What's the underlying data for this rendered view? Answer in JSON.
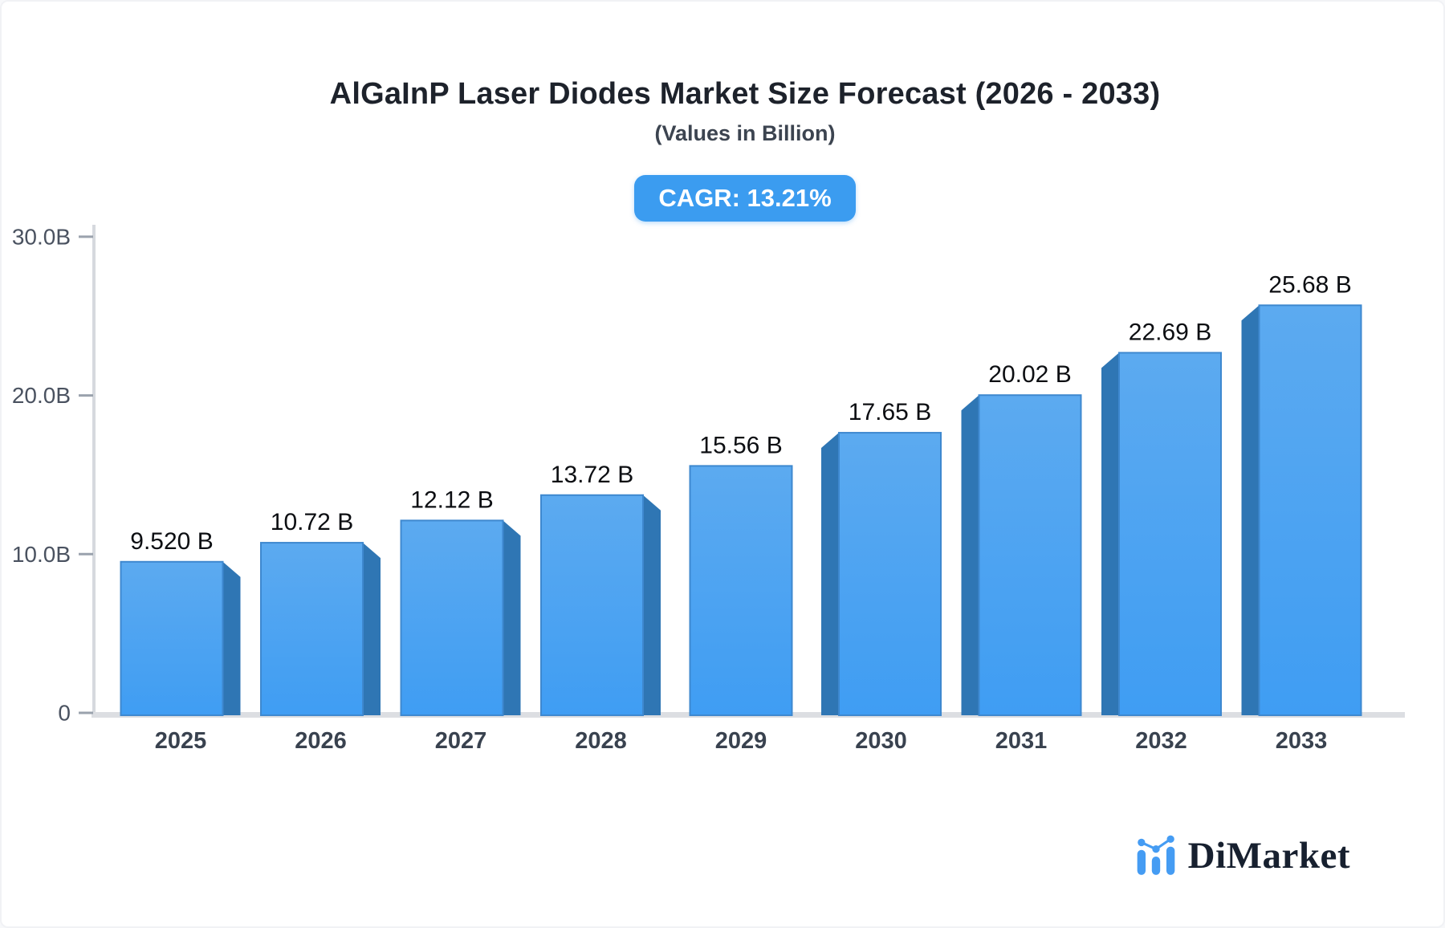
{
  "header": {
    "title": "AlGaInP Laser Diodes Market Size Forecast (2026 - 2033)",
    "subtitle": "(Values in Billion)"
  },
  "badge": {
    "label": "CAGR: 13.21%"
  },
  "chart_data": {
    "type": "bar",
    "title": "AlGaInP Laser Diodes Market Size Forecast (2026 - 2033)",
    "subtitle": "(Values in Billion)",
    "cagr_percent": 13.21,
    "categories": [
      "2025",
      "2026",
      "2027",
      "2028",
      "2029",
      "2030",
      "2031",
      "2032",
      "2033"
    ],
    "values": [
      9.52,
      10.72,
      12.12,
      13.72,
      15.56,
      17.65,
      20.02,
      22.69,
      25.68
    ],
    "value_labels": [
      "9.520 B",
      "10.72 B",
      "12.12 B",
      "13.72 B",
      "15.56 B",
      "17.65 B",
      "20.02 B",
      "22.69 B",
      "25.68 B"
    ],
    "xlabel": "",
    "ylabel": "",
    "ylim": [
      0,
      30
    ],
    "yticks": [
      {
        "value": 0,
        "label": "0"
      },
      {
        "value": 10,
        "label": "10.0B"
      },
      {
        "value": 20,
        "label": "20.0B"
      },
      {
        "value": 30,
        "label": "30.0B"
      }
    ],
    "grid": false,
    "legend": false,
    "colors": {
      "bar_top": "#5caaf0",
      "bar_bottom": "#3f9df3",
      "bar_stroke": "#3e88cf",
      "bar_side": "#2f76b4",
      "axis": "#d6d9de",
      "baseline": "#dcdee2",
      "tick": "#9aa2ad",
      "badge_bg": "#3b9cf0"
    }
  },
  "logo": {
    "text": "DiMarket",
    "icon": "mini-bar-line-chart-icon",
    "color": "#459cf3"
  }
}
